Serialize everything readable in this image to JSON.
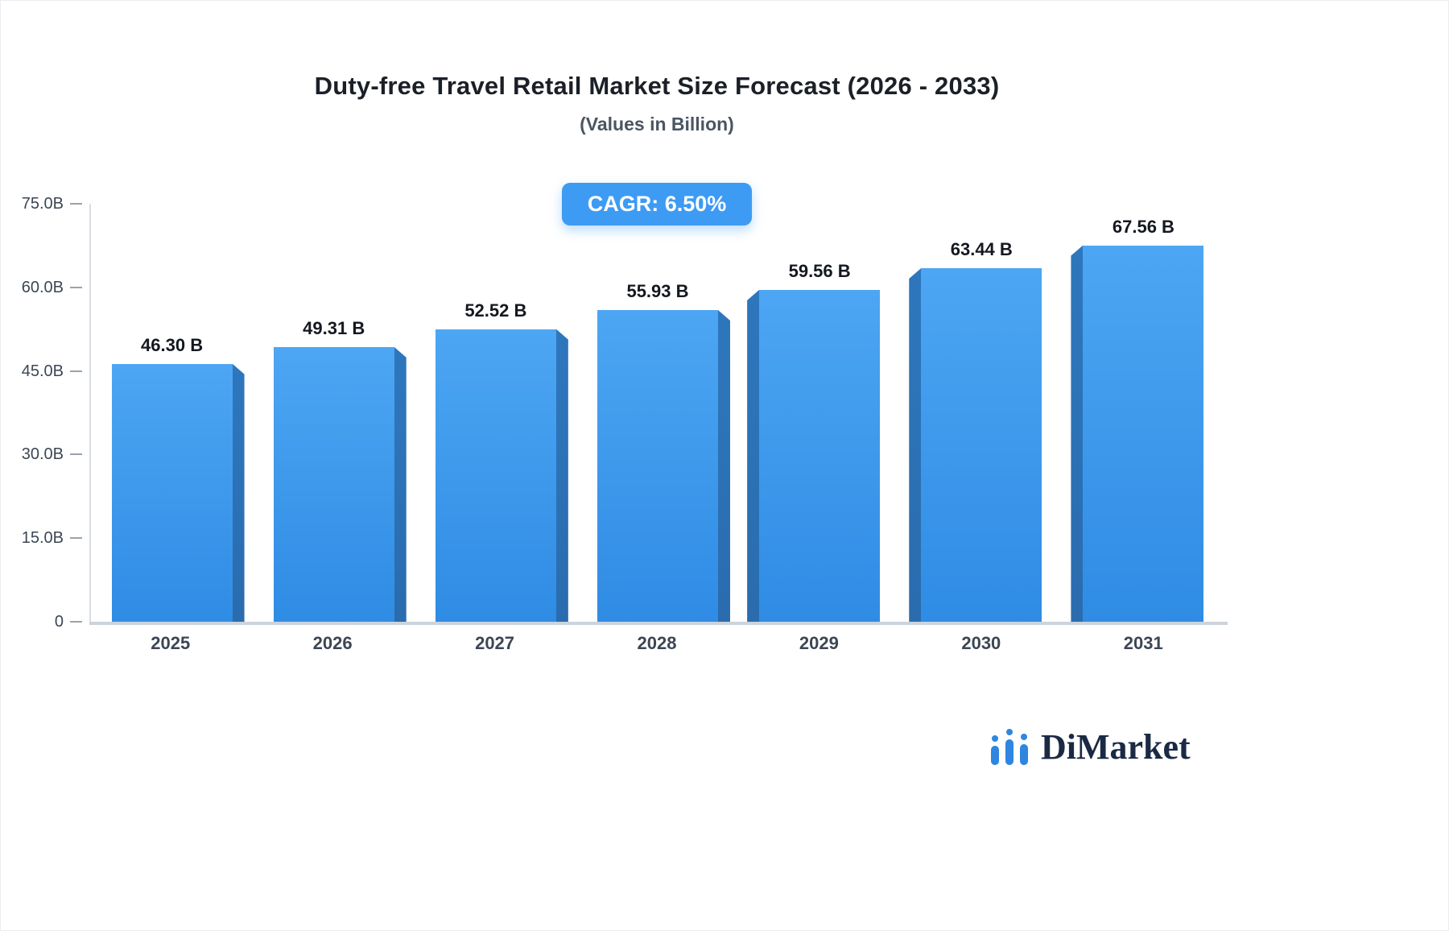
{
  "header": {
    "title": "Duty-free Travel Retail Market Size Forecast (2026 - 2033)",
    "subtitle": "(Values in Billion)"
  },
  "badge": {
    "label": "CAGR: 6.50%",
    "bg": "#3d9bf3"
  },
  "logo": {
    "text": "DiMarket",
    "icon_color": "#2e86e0"
  },
  "chart_data": {
    "type": "bar",
    "title": "Duty-free Travel Retail Market Size Forecast (2026 - 2033)",
    "subtitle": "(Values in Billion)",
    "categories": [
      "2025",
      "2026",
      "2027",
      "2028",
      "2029",
      "2030",
      "2031"
    ],
    "values": [
      46.3,
      49.31,
      52.52,
      55.93,
      59.56,
      63.44,
      67.56
    ],
    "value_labels": [
      "46.30 B",
      "49.31 B",
      "52.52 B",
      "55.93 B",
      "59.56 B",
      "63.44 B",
      "67.56 B"
    ],
    "annotation": "CAGR: 6.50%",
    "xlabel": "",
    "ylabel": "",
    "ylim": [
      0,
      75
    ],
    "y_ticks": [
      {
        "label": "0",
        "value": 0
      },
      {
        "label": "15.0B",
        "value": 15
      },
      {
        "label": "30.0B",
        "value": 30
      },
      {
        "label": "45.0B",
        "value": 45
      },
      {
        "label": "60.0B",
        "value": 60
      },
      {
        "label": "75.0B",
        "value": 75
      }
    ],
    "grid": false,
    "legend": false,
    "bar_color_top": "#4da6f3",
    "bar_color_bottom": "#2f8ce4",
    "bar_side_color": "#2b72b5"
  }
}
